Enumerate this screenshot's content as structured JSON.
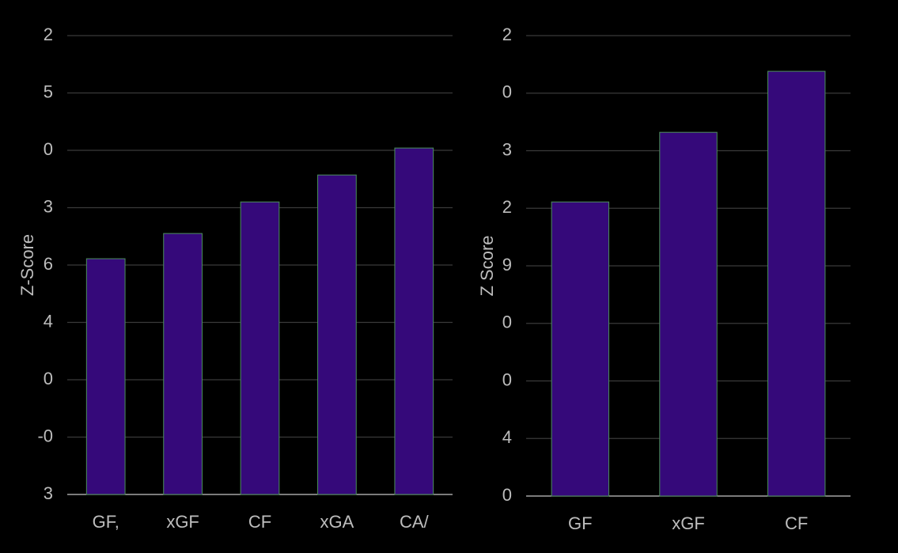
{
  "chart_data": [
    {
      "type": "bar",
      "ylabel": "Z-Score",
      "categories": [
        "GF,",
        "xGF",
        "CF",
        "xGA",
        "CA/"
      ],
      "values": [
        4.11,
        4.55,
        5.1,
        5.57,
        6.04
      ],
      "color": "#35097a",
      "ylim": [
        0,
        8
      ],
      "yticks": [
        {
          "value": 0,
          "label": "3"
        },
        {
          "value": 1,
          "label": "-0"
        },
        {
          "value": 2,
          "label": "0"
        },
        {
          "value": 3,
          "label": "4"
        },
        {
          "value": 4,
          "label": "6"
        },
        {
          "value": 5,
          "label": "3"
        },
        {
          "value": 6,
          "label": "0"
        },
        {
          "value": 7,
          "label": "5"
        },
        {
          "value": 8,
          "label": "2"
        }
      ],
      "grid": true
    },
    {
      "type": "bar",
      "ylabel": "Z Score",
      "categories": [
        "GF",
        "xGF",
        "CF"
      ],
      "values": [
        5.11,
        6.32,
        7.38
      ],
      "color": "#35097a",
      "ylim": [
        0,
        8
      ],
      "yticks": [
        0,
        {
          "value": 1,
          "label": "4"
        },
        {
          "value": 2,
          "label": "0"
        },
        {
          "value": 3,
          "label": "0"
        },
        {
          "value": 4,
          "label": "9"
        },
        {
          "value": 5,
          "label": "2"
        },
        {
          "value": 6,
          "label": "3"
        },
        {
          "value": 7,
          "label": "0"
        },
        {
          "value": 8,
          "label": "2"
        }
      ],
      "grid": true
    }
  ]
}
